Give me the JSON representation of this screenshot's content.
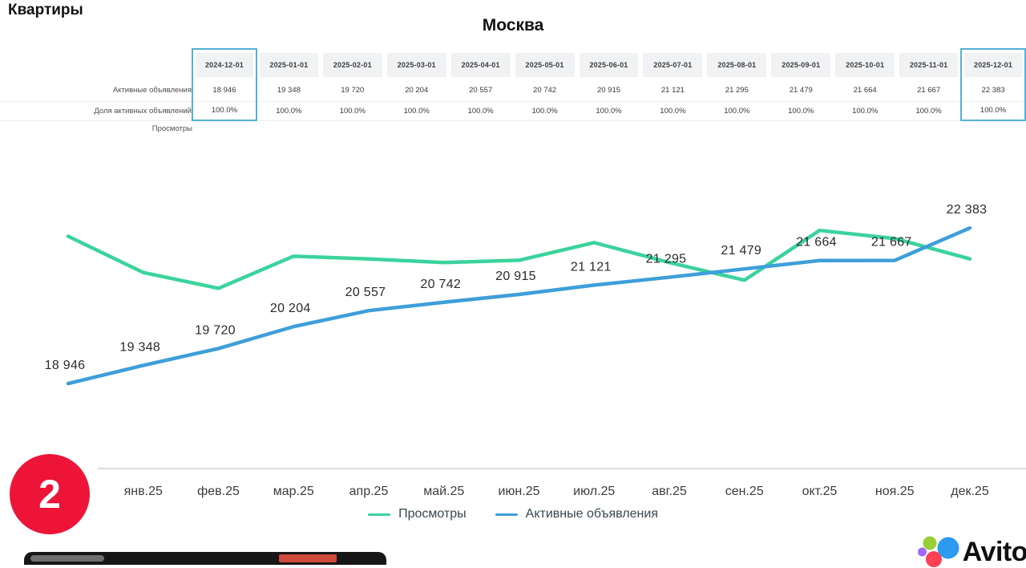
{
  "page": {
    "title_left": "Квартиры",
    "title_center": "Москва",
    "highlight_color": "#53b1d4"
  },
  "table": {
    "columns": [
      "2024-12-01",
      "2025-01-01",
      "2025-02-01",
      "2025-03-01",
      "2025-04-01",
      "2025-05-01",
      "2025-06-01",
      "2025-07-01",
      "2025-08-01",
      "2025-09-01",
      "2025-10-01",
      "2025-11-01",
      "2025-12-01"
    ],
    "highlighted_columns": [
      0,
      12
    ],
    "rows": [
      {
        "label": "Активные объявления",
        "values": [
          "18 946",
          "19 348",
          "19 720",
          "20 204",
          "20 557",
          "20 742",
          "20 915",
          "21 121",
          "21 295",
          "21 479",
          "21 664",
          "21 667",
          "22 383"
        ]
      },
      {
        "label": "Доля активных объявлений",
        "values": [
          "100.0%",
          "100.0%",
          "100.0%",
          "100.0%",
          "100.0%",
          "100.0%",
          "100.0%",
          "100.0%",
          "100.0%",
          "100.0%",
          "100.0%",
          "100.0%",
          "100.0%"
        ]
      },
      {
        "label": "Просмотры",
        "values": [
          "",
          "",
          "",
          "",
          "",
          "",
          "",
          "",
          "",
          "",
          "",
          "",
          ""
        ]
      }
    ]
  },
  "chart_data": {
    "type": "line",
    "x": [
      "2024-12-01",
      "2025-01-01",
      "2025-02-01",
      "2025-03-01",
      "2025-04-01",
      "2025-05-01",
      "2025-06-01",
      "2025-07-01",
      "2025-08-01",
      "2025-09-01",
      "2025-10-01",
      "2025-11-01",
      "2025-12-01"
    ],
    "x_tick_labels": [
      "янв.25",
      "фев.25",
      "мар.25",
      "апр.25",
      "май.25",
      "июн.25",
      "июл.25",
      "авг.25",
      "сен.25",
      "окт.25",
      "ноя.25",
      "дек.25"
    ],
    "ylim": [
      17600,
      23450
    ],
    "grid": false,
    "legend_position": "bottom",
    "series": [
      {
        "name": "Просмотры",
        "color": "#3bd39c",
        "estimated": true,
        "values": [
          22200,
          21400,
          21050,
          21760,
          21700,
          21620,
          21670,
          22060,
          21620,
          21230,
          22330,
          22150,
          21700
        ]
      },
      {
        "name": "Активные объявления",
        "color": "#3e9fd9",
        "values": [
          18946,
          19348,
          19720,
          20204,
          20557,
          20742,
          20915,
          21121,
          21295,
          21479,
          21664,
          21667,
          22383
        ],
        "labels": [
          "18 946",
          "19 348",
          "19 720",
          "20 204",
          "20 557",
          "20 742",
          "20 915",
          "21 121",
          "21 295",
          "21 479",
          "21 664",
          "21 667",
          "22 383"
        ]
      }
    ]
  },
  "badge": {
    "label": "2",
    "color": "#ee1438"
  },
  "logo": {
    "text": "Avito",
    "colors": {
      "green": "#9ace36",
      "blue": "#2d9bf0",
      "red": "#ff4053",
      "purple": "#a169f7"
    }
  }
}
